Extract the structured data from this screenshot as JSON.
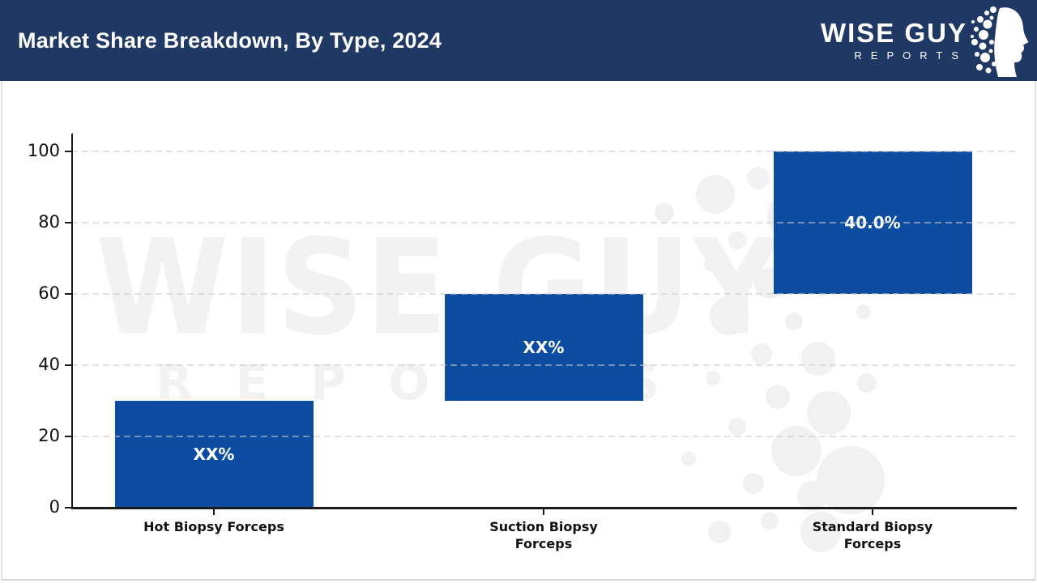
{
  "header": {
    "title": "Market Share Breakdown, By Type, 2024",
    "bg_color": "#1f3864",
    "logo": {
      "brand_top": "WISE GUY",
      "brand_bottom": "REPORTS"
    }
  },
  "watermark": {
    "brand_top": "WISE GUY",
    "brand_bottom": "REPORTS"
  },
  "chart_data": {
    "type": "bar",
    "subtype": "floating-segment-waterfall",
    "title": "Market Share Breakdown, By Type, 2024",
    "categories": [
      "Hot Biopsy Forceps",
      "Suction Biopsy Forceps",
      "Standard Biopsy Forceps"
    ],
    "category_label_lines": [
      [
        "Hot Biopsy Forceps"
      ],
      [
        "Suction Biopsy",
        "Forceps"
      ],
      [
        "Standard Biopsy",
        "Forceps"
      ]
    ],
    "segments": [
      {
        "category": "Hot Biopsy Forceps",
        "start": 0,
        "end": 30,
        "label": "XX%"
      },
      {
        "category": "Suction Biopsy Forceps",
        "start": 30,
        "end": 60,
        "label": "XX%"
      },
      {
        "category": "Standard Biopsy Forceps",
        "start": 60,
        "end": 100,
        "label": "40.0%"
      }
    ],
    "ylim": [
      0,
      100
    ],
    "yticks": [
      0,
      20,
      40,
      60,
      80,
      100
    ],
    "xlabel": "",
    "ylabel": "",
    "grid": "horizontal-dashed",
    "legend": "none",
    "bar_color": "#0c4da2",
    "bar_label_color": "#ffffff",
    "axis_color": "#1a1a1a"
  }
}
